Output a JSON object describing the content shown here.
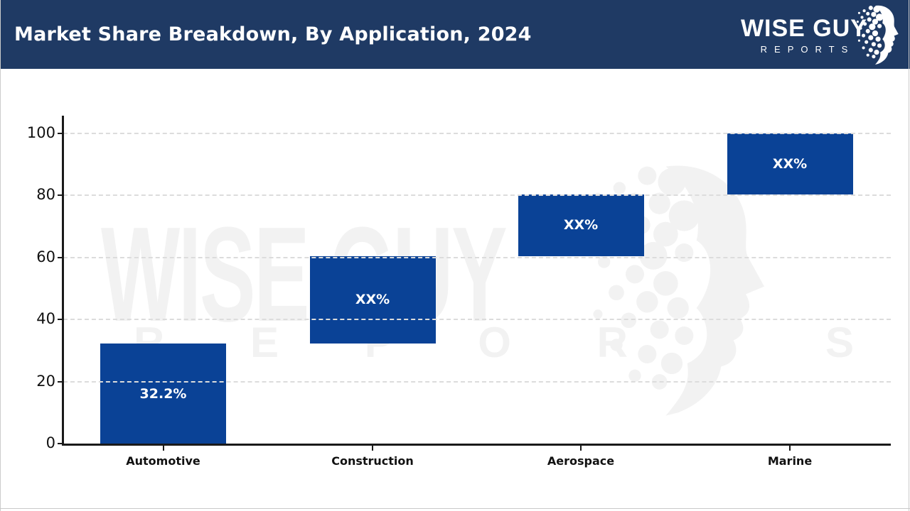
{
  "header": {
    "title": "Market Share Breakdown, By Application, 2024",
    "bg_color": "#1f3a64",
    "logo": {
      "line1": "WISE GUY",
      "line2": "REPORTS"
    }
  },
  "watermark": {
    "line1": "WISE GUY",
    "line2": "R E P O R T S"
  },
  "chart_data": {
    "type": "bar",
    "subtype": "waterfall",
    "title": "Market Share Breakdown, By Application, 2024",
    "categories": [
      "Automotive",
      "Construction",
      "Aerospace",
      "Marine"
    ],
    "segments": [
      {
        "category": "Automotive",
        "start": 0,
        "end": 32.2,
        "label": "32.2%"
      },
      {
        "category": "Construction",
        "start": 32.2,
        "end": 60.4,
        "label": "XX%"
      },
      {
        "category": "Aerospace",
        "start": 60.4,
        "end": 80.3,
        "label": "XX%"
      },
      {
        "category": "Marine",
        "start": 80.3,
        "end": 100,
        "label": "XX%"
      }
    ],
    "y_ticks": [
      0,
      20,
      40,
      60,
      80,
      100
    ],
    "ylim": [
      0,
      105
    ],
    "xlabel": "",
    "ylabel": "",
    "bar_color": "#0a4296",
    "bar_label_color": "#ffffff",
    "grid": "horizontal dashed, drawn over bars",
    "legend": "none"
  }
}
